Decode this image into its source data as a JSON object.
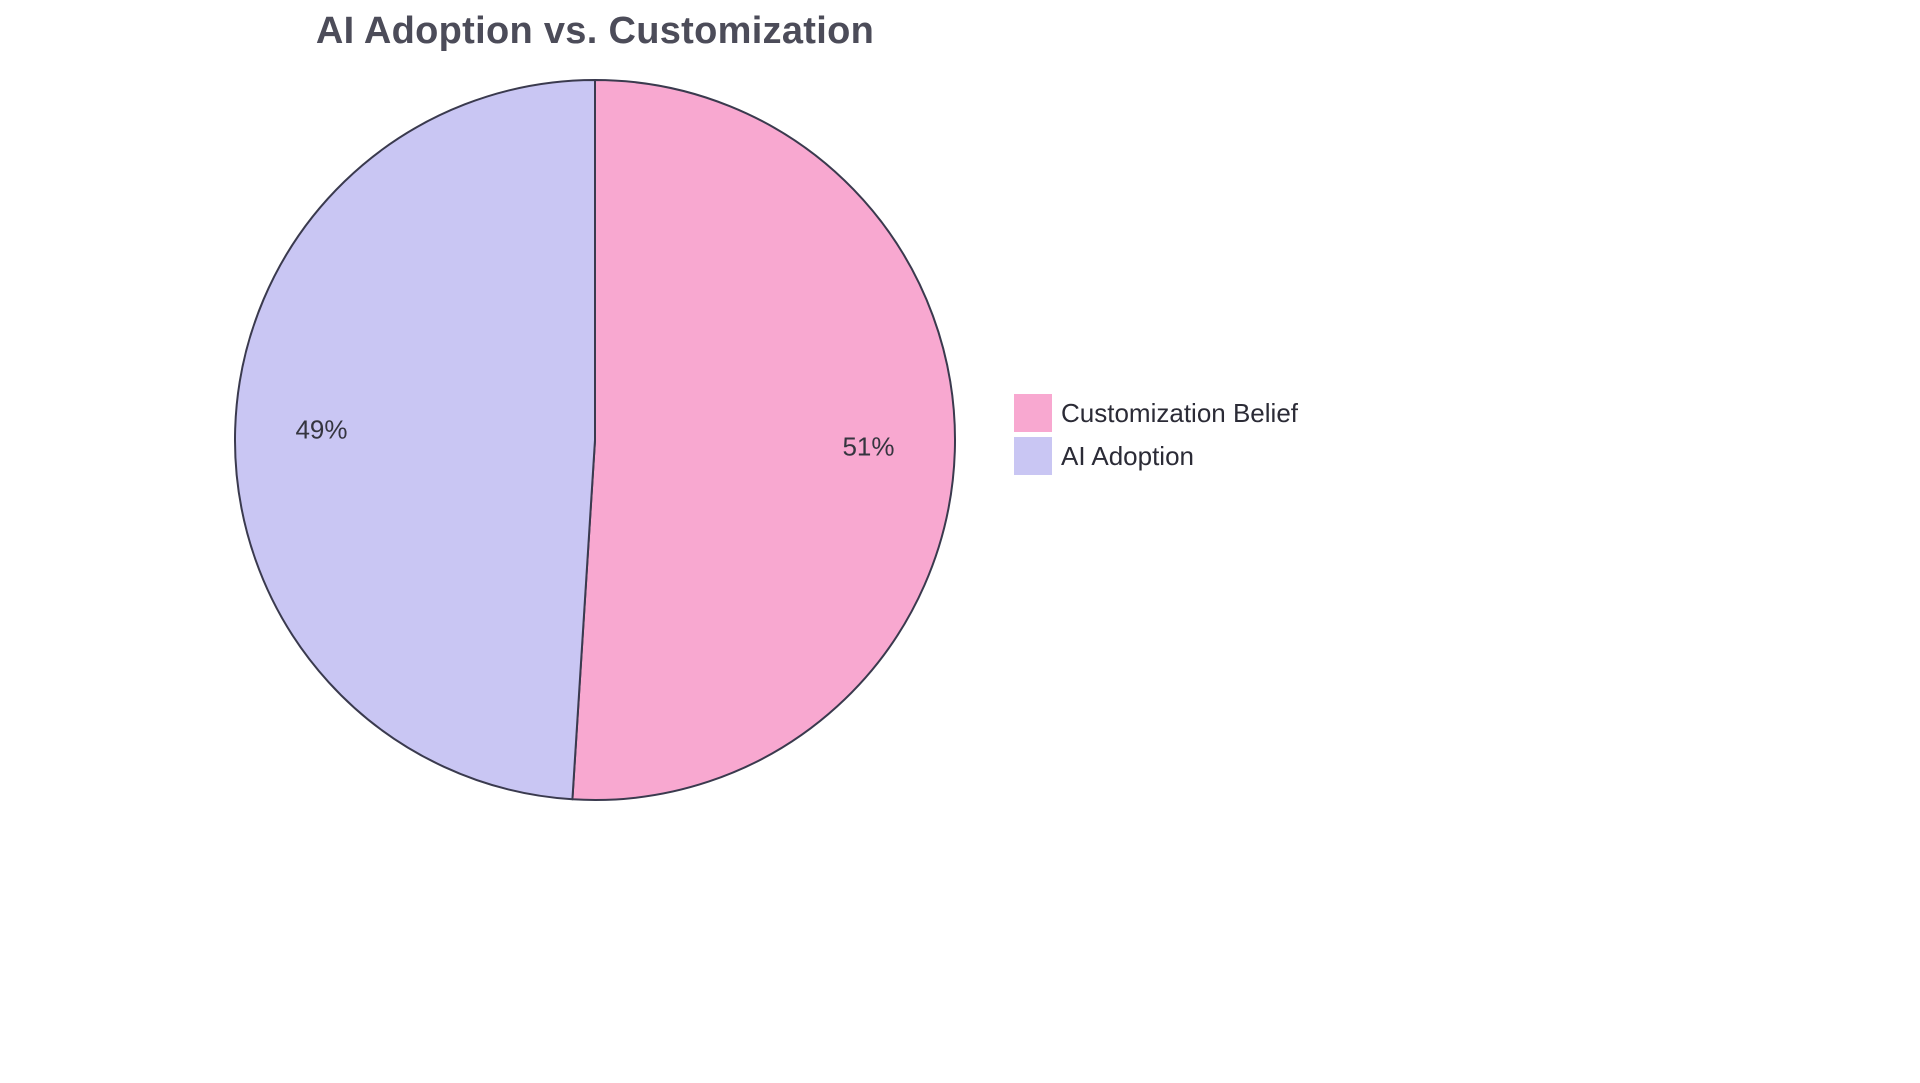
{
  "chart_data": {
    "type": "pie",
    "title": "AI Adoption vs. Customization",
    "slices": [
      {
        "label": "Customization Belief",
        "value": 51,
        "display": "51%",
        "color": "#F8A8D0"
      },
      {
        "label": "AI Adoption",
        "value": 49,
        "display": "49%",
        "color": "#C9C6F3"
      }
    ],
    "start_angle_deg": 0,
    "direction": "clockwise",
    "stroke_color": "#3a3a4e",
    "legend_position": "right",
    "legend_items": [
      {
        "label": "Customization Belief",
        "color": "#F8A8D0"
      },
      {
        "label": "AI Adoption",
        "color": "#C9C6F3"
      }
    ]
  }
}
